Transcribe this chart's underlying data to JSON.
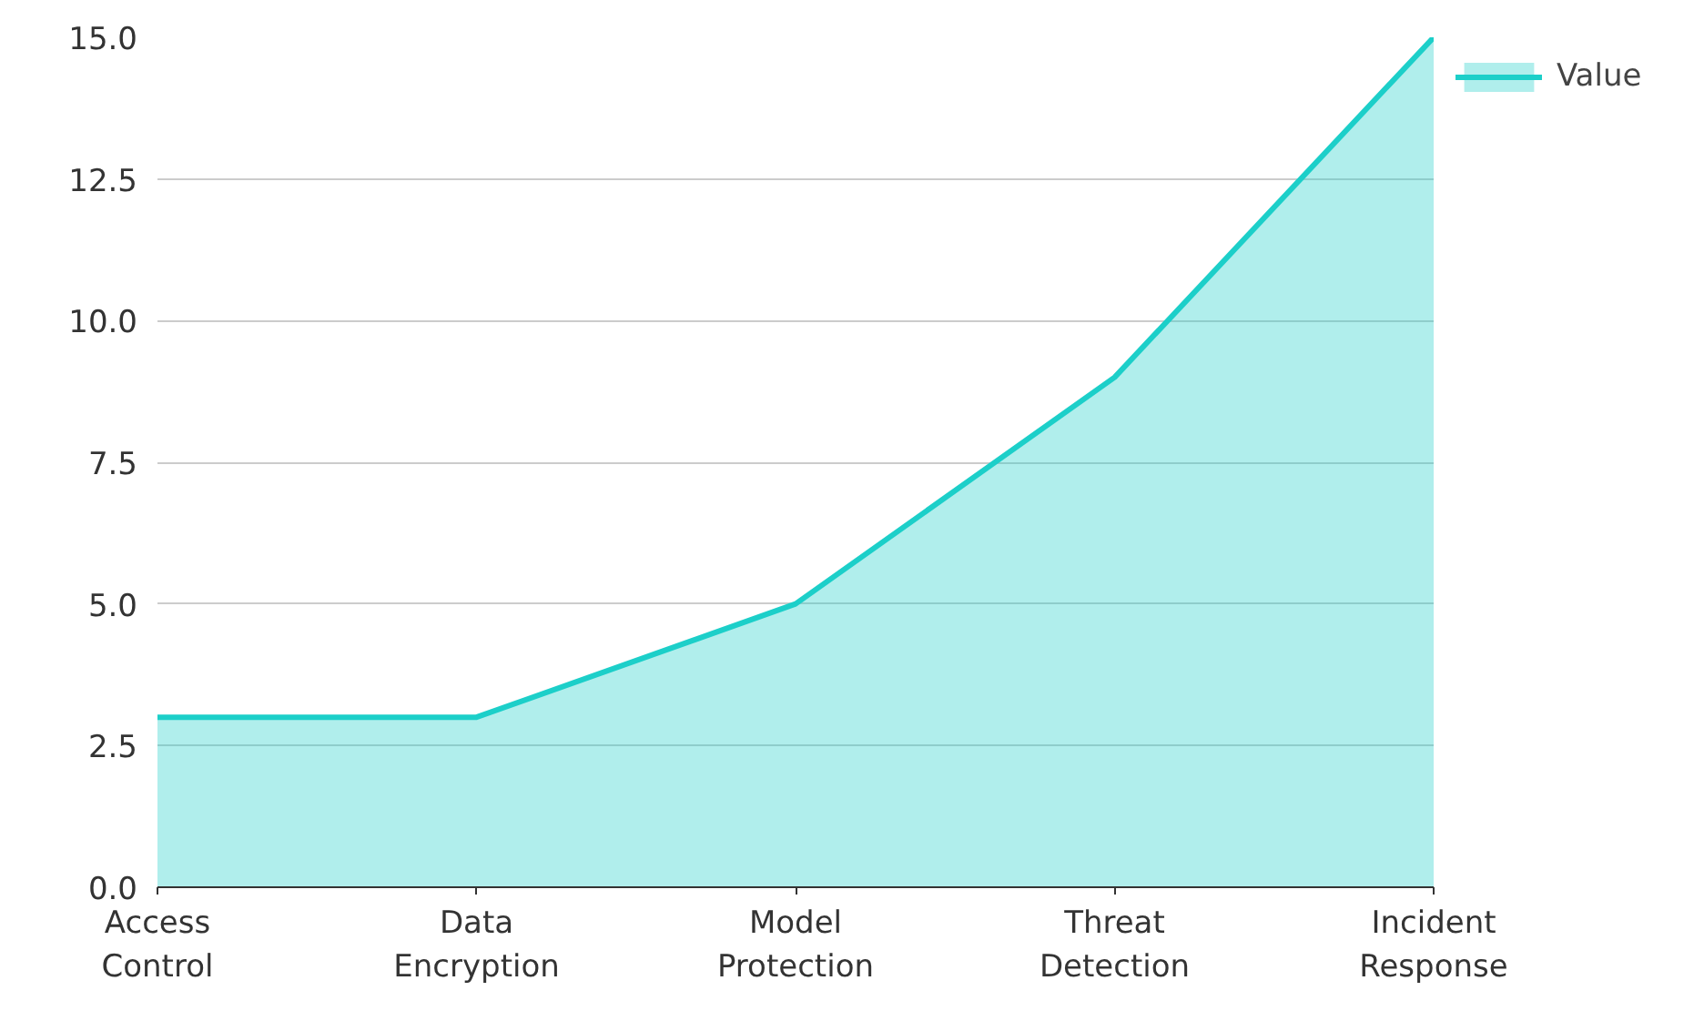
{
  "chart_data": {
    "type": "area",
    "categories": [
      "Access Control",
      "Data Encryption",
      "Model Protection",
      "Threat Detection",
      "Incident Response"
    ],
    "series": [
      {
        "name": "Value",
        "color": "#1ccfc9",
        "values": [
          3,
          3,
          5,
          9,
          15
        ]
      }
    ],
    "ylim": [
      0,
      15
    ],
    "yticks": [
      {
        "value": 0,
        "label": "0.0"
      },
      {
        "value": 2.5,
        "label": "2.5"
      },
      {
        "value": 5,
        "label": "5.0"
      },
      {
        "value": 7.5,
        "label": "7.5"
      },
      {
        "value": 10,
        "label": "10.0"
      },
      {
        "value": 12.5,
        "label": "12.5"
      },
      {
        "value": 15,
        "label": "15.0"
      }
    ],
    "grid": "y",
    "legend": "top right"
  }
}
